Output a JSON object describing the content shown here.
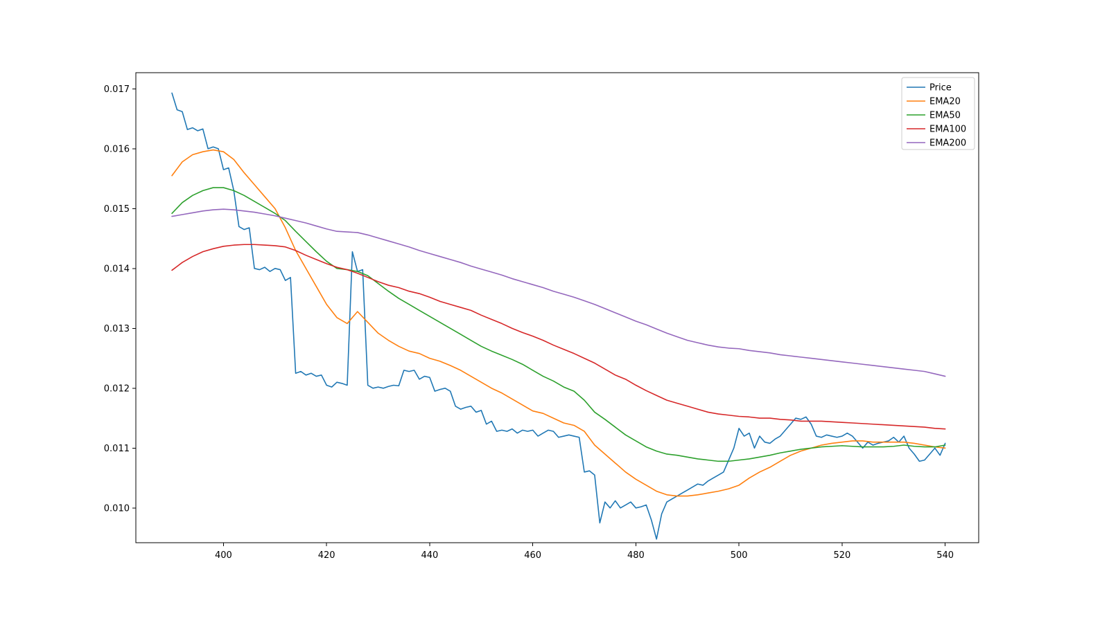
{
  "figure": {
    "background": "#ffffff"
  },
  "chart_data": {
    "type": "line",
    "title": "",
    "xlabel": "",
    "ylabel": "",
    "grid": false,
    "legend_position": "upper right",
    "legend_entries": [
      "Price",
      "EMA20",
      "EMA50",
      "EMA100",
      "EMA200"
    ],
    "xlim": [
      383.0,
      546.5
    ],
    "ylim": [
      0.00942,
      0.01727
    ],
    "xticks": [
      400,
      420,
      440,
      460,
      480,
      500,
      520,
      540
    ],
    "yticks": [
      0.01,
      0.011,
      0.012,
      0.013,
      0.014,
      0.015,
      0.016,
      0.017
    ],
    "ytick_decimals": 3,
    "axis_color": "#000000",
    "series": [
      {
        "name": "Price",
        "color": "#1f77b4",
        "x0": 390,
        "dx": 1,
        "y": [
          0.01693,
          0.01665,
          0.01662,
          0.01632,
          0.01635,
          0.0163,
          0.01633,
          0.016,
          0.01603,
          0.016,
          0.01565,
          0.01568,
          0.0153,
          0.0147,
          0.01465,
          0.01468,
          0.014,
          0.01398,
          0.01402,
          0.01395,
          0.014,
          0.01398,
          0.0138,
          0.01385,
          0.01225,
          0.01228,
          0.01222,
          0.01225,
          0.0122,
          0.01222,
          0.01205,
          0.01202,
          0.0121,
          0.01208,
          0.01205,
          0.01428,
          0.01395,
          0.01398,
          0.01205,
          0.012,
          0.01202,
          0.012,
          0.01203,
          0.01205,
          0.01204,
          0.0123,
          0.01228,
          0.0123,
          0.01215,
          0.0122,
          0.01218,
          0.01195,
          0.01198,
          0.012,
          0.01195,
          0.0117,
          0.01165,
          0.01168,
          0.0117,
          0.0116,
          0.01163,
          0.0114,
          0.01145,
          0.01128,
          0.0113,
          0.01128,
          0.01132,
          0.01125,
          0.0113,
          0.01128,
          0.0113,
          0.0112,
          0.01125,
          0.0113,
          0.01128,
          0.01118,
          0.0112,
          0.01122,
          0.0112,
          0.01118,
          0.0106,
          0.01062,
          0.01055,
          0.00975,
          0.0101,
          0.01,
          0.01012,
          0.01,
          0.01005,
          0.0101,
          0.01,
          0.01002,
          0.01005,
          0.0098,
          0.00948,
          0.0099,
          0.0101,
          0.01015,
          0.0102,
          0.01025,
          0.0103,
          0.01035,
          0.0104,
          0.01038,
          0.01045,
          0.0105,
          0.01055,
          0.0106,
          0.0108,
          0.011,
          0.01133,
          0.0112,
          0.01125,
          0.011,
          0.0112,
          0.0111,
          0.01108,
          0.01115,
          0.0112,
          0.0113,
          0.0114,
          0.0115,
          0.01148,
          0.01152,
          0.0114,
          0.0112,
          0.01118,
          0.01122,
          0.0112,
          0.01118,
          0.0112,
          0.01125,
          0.0112,
          0.0111,
          0.011,
          0.0111,
          0.01105,
          0.01108,
          0.0111,
          0.01112,
          0.01118,
          0.0111,
          0.0112,
          0.011,
          0.0109,
          0.01078,
          0.0108,
          0.0109,
          0.011,
          0.01088,
          0.01108
        ]
      },
      {
        "name": "EMA20",
        "color": "#ff7f0e",
        "x0": 390,
        "dx": 2,
        "y": [
          0.01555,
          0.01578,
          0.0159,
          0.01595,
          0.01598,
          0.01595,
          0.01582,
          0.0156,
          0.0154,
          0.0152,
          0.015,
          0.01468,
          0.0143,
          0.014,
          0.0137,
          0.0134,
          0.01318,
          0.01308,
          0.01328,
          0.0131,
          0.01292,
          0.0128,
          0.0127,
          0.01262,
          0.01258,
          0.0125,
          0.01245,
          0.01238,
          0.0123,
          0.0122,
          0.0121,
          0.012,
          0.01192,
          0.01182,
          0.01172,
          0.01162,
          0.01158,
          0.0115,
          0.01142,
          0.01138,
          0.01128,
          0.01105,
          0.0109,
          0.01075,
          0.0106,
          0.01048,
          0.01038,
          0.01028,
          0.01022,
          0.0102,
          0.0102,
          0.01022,
          0.01025,
          0.01028,
          0.01032,
          0.01038,
          0.0105,
          0.0106,
          0.01068,
          0.01078,
          0.01088,
          0.01095,
          0.011,
          0.01105,
          0.01108,
          0.0111,
          0.01112,
          0.01112,
          0.0111,
          0.0111,
          0.0111,
          0.0111,
          0.01108,
          0.01105,
          0.01102,
          0.011
        ]
      },
      {
        "name": "EMA50",
        "color": "#2ca02c",
        "x0": 390,
        "dx": 2,
        "y": [
          0.01492,
          0.0151,
          0.01522,
          0.0153,
          0.01535,
          0.01535,
          0.0153,
          0.01522,
          0.01512,
          0.01502,
          0.01492,
          0.0148,
          0.01462,
          0.01445,
          0.01428,
          0.01412,
          0.014,
          0.01398,
          0.01395,
          0.01388,
          0.01375,
          0.01362,
          0.0135,
          0.0134,
          0.0133,
          0.0132,
          0.0131,
          0.013,
          0.0129,
          0.0128,
          0.0127,
          0.01262,
          0.01255,
          0.01248,
          0.0124,
          0.0123,
          0.0122,
          0.01212,
          0.01202,
          0.01195,
          0.0118,
          0.0116,
          0.01148,
          0.01135,
          0.01122,
          0.01112,
          0.01102,
          0.01095,
          0.0109,
          0.01088,
          0.01085,
          0.01082,
          0.0108,
          0.01078,
          0.01078,
          0.0108,
          0.01082,
          0.01085,
          0.01088,
          0.01092,
          0.01095,
          0.01098,
          0.011,
          0.01102,
          0.01103,
          0.01104,
          0.01103,
          0.01102,
          0.01102,
          0.01102,
          0.01103,
          0.01105,
          0.01103,
          0.01102,
          0.01102,
          0.01105
        ]
      },
      {
        "name": "EMA100",
        "color": "#d62728",
        "x0": 390,
        "dx": 2,
        "y": [
          0.01397,
          0.0141,
          0.0142,
          0.01428,
          0.01433,
          0.01437,
          0.01439,
          0.0144,
          0.0144,
          0.01439,
          0.01438,
          0.01436,
          0.0143,
          0.01422,
          0.01415,
          0.01408,
          0.01402,
          0.01398,
          0.01392,
          0.01385,
          0.01378,
          0.01372,
          0.01368,
          0.01362,
          0.01358,
          0.01352,
          0.01345,
          0.0134,
          0.01335,
          0.0133,
          0.01322,
          0.01315,
          0.01308,
          0.013,
          0.01293,
          0.01287,
          0.0128,
          0.01272,
          0.01265,
          0.01258,
          0.0125,
          0.01242,
          0.01232,
          0.01222,
          0.01215,
          0.01205,
          0.01196,
          0.01188,
          0.0118,
          0.01175,
          0.0117,
          0.01165,
          0.0116,
          0.01157,
          0.01155,
          0.01153,
          0.01152,
          0.0115,
          0.0115,
          0.01148,
          0.01147,
          0.01145,
          0.01145,
          0.01145,
          0.01144,
          0.01143,
          0.01142,
          0.01141,
          0.0114,
          0.01139,
          0.01138,
          0.01137,
          0.01136,
          0.01135,
          0.01133,
          0.01132
        ]
      },
      {
        "name": "EMA200",
        "color": "#9467bd",
        "x0": 390,
        "dx": 2,
        "y": [
          0.01487,
          0.0149,
          0.01493,
          0.01496,
          0.01498,
          0.01499,
          0.01498,
          0.01496,
          0.01494,
          0.01491,
          0.01488,
          0.01484,
          0.0148,
          0.01476,
          0.01471,
          0.01466,
          0.01462,
          0.01461,
          0.0146,
          0.01456,
          0.01451,
          0.01446,
          0.01441,
          0.01436,
          0.0143,
          0.01425,
          0.0142,
          0.01415,
          0.0141,
          0.01404,
          0.01399,
          0.01394,
          0.01389,
          0.01383,
          0.01378,
          0.01373,
          0.01368,
          0.01362,
          0.01357,
          0.01352,
          0.01346,
          0.0134,
          0.01333,
          0.01326,
          0.01319,
          0.01312,
          0.01306,
          0.01299,
          0.01292,
          0.01286,
          0.0128,
          0.01276,
          0.01272,
          0.01269,
          0.01267,
          0.01266,
          0.01263,
          0.01261,
          0.01259,
          0.01256,
          0.01254,
          0.01252,
          0.0125,
          0.01248,
          0.01246,
          0.01244,
          0.01242,
          0.0124,
          0.01238,
          0.01236,
          0.01234,
          0.01232,
          0.0123,
          0.01228,
          0.01224,
          0.0122
        ]
      }
    ]
  }
}
